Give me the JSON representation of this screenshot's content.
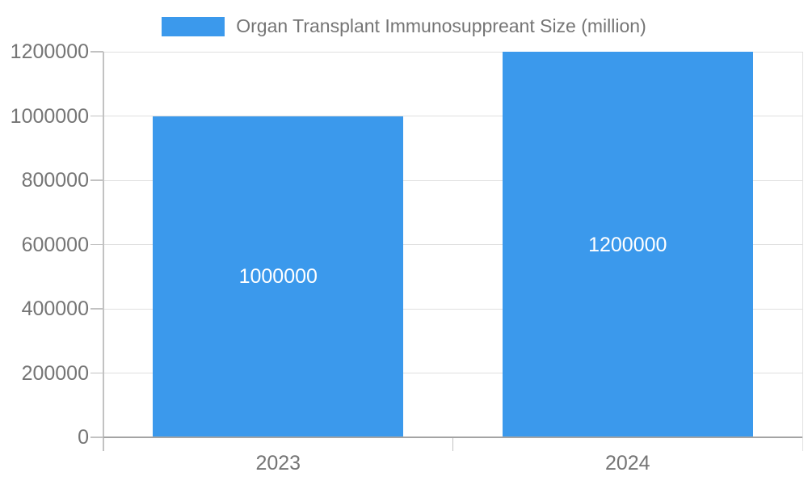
{
  "chart_data": {
    "type": "bar",
    "title": "Organ Transplant Immunosuppreant Size (million)",
    "categories": [
      "2023",
      "2024"
    ],
    "values": [
      1000000,
      1200000
    ],
    "yticks": [
      0,
      200000,
      400000,
      600000,
      800000,
      1000000,
      1200000
    ],
    "ylim": [
      0,
      1200000
    ],
    "xlabel": "",
    "ylabel": "",
    "grid": "horizontal",
    "legend_position": "top-center",
    "data_labels": "inside-center"
  },
  "colors": {
    "bar": "#3b99ec",
    "axis_text": "#757575",
    "title_text": "#757575",
    "gridline": "#e0e0e0",
    "axis_line": "#a4a4a4",
    "tick_line": "#c2c2c2",
    "data_label_text": "#ffffff",
    "background": "#ffffff"
  }
}
